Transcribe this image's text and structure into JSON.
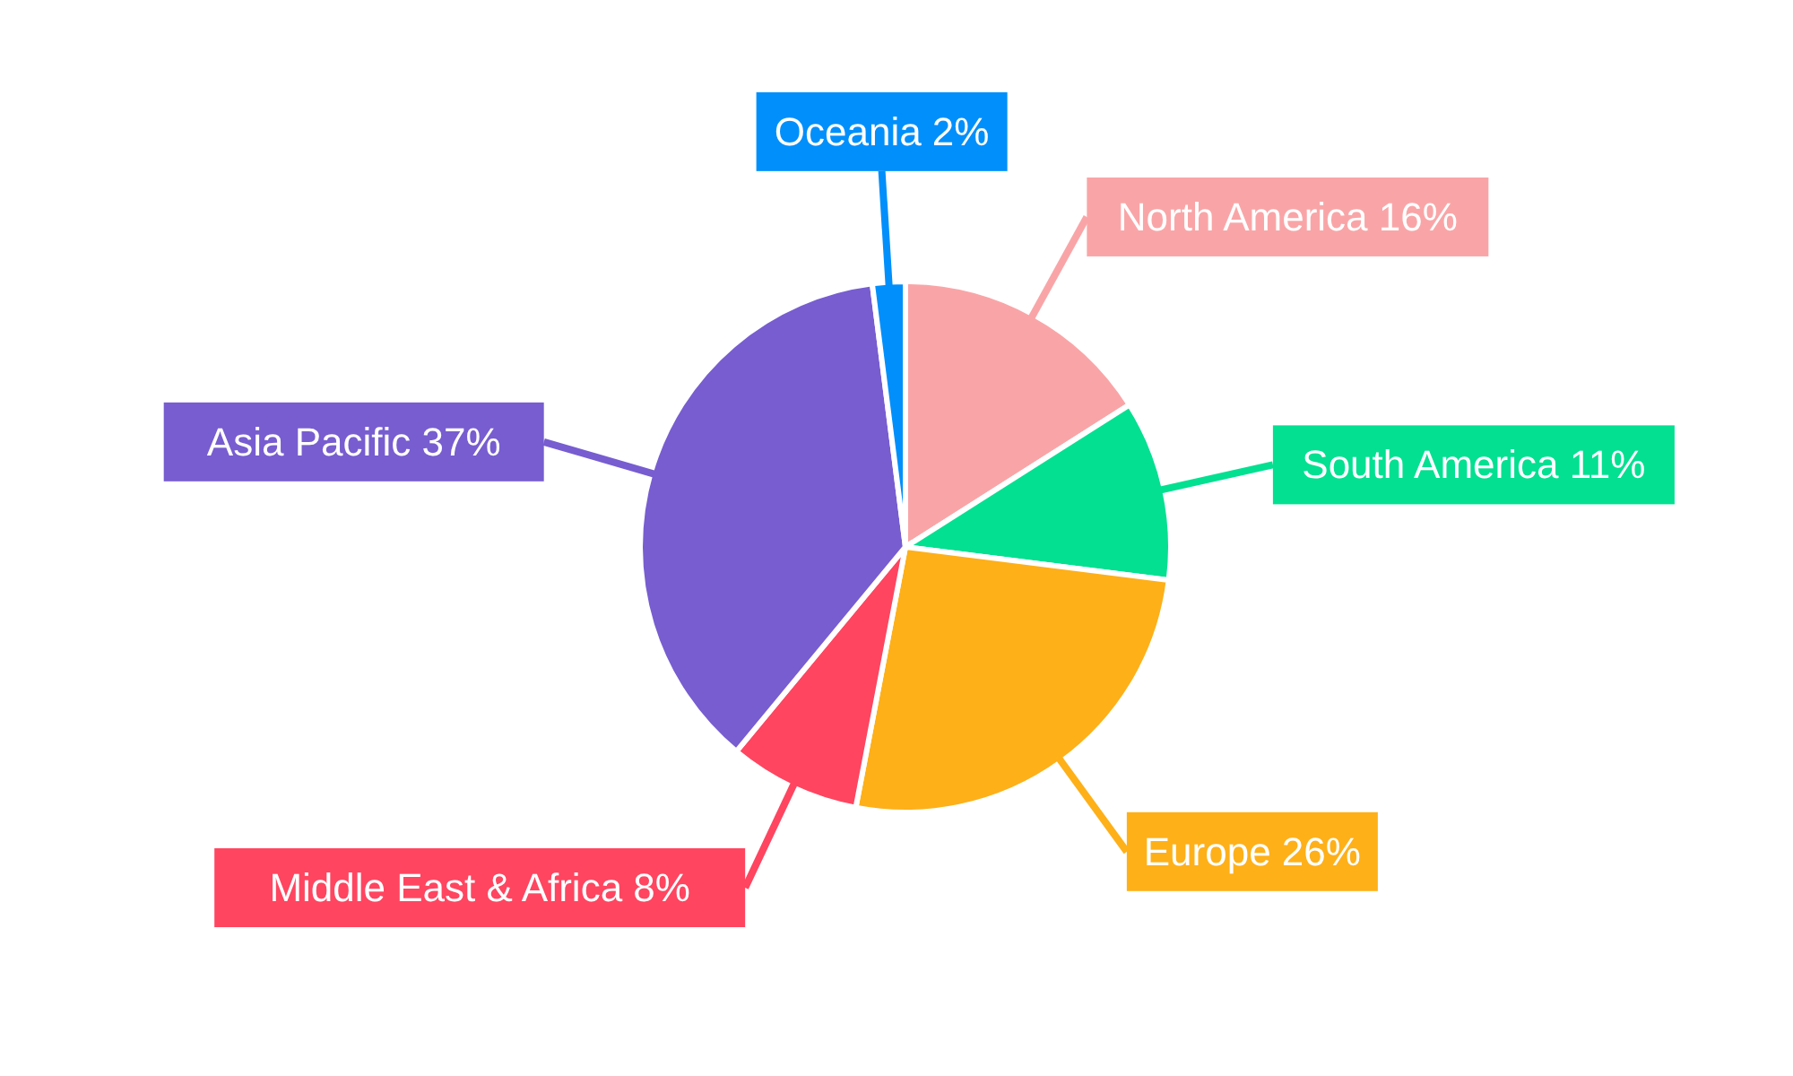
{
  "chart_data": {
    "type": "pie",
    "categories": [
      "North America",
      "South America",
      "Europe",
      "Middle East & Africa",
      "Asia Pacific",
      "Oceania"
    ],
    "values": [
      16,
      11,
      26,
      8,
      37,
      2
    ],
    "value_labels": [
      "16%",
      "11%",
      "26%",
      "8%",
      "37%",
      "2%"
    ],
    "colors": [
      "#f9a5a7",
      "#03e091",
      "#feb019",
      "#ff4560",
      "#775dd0",
      "#008ffb"
    ],
    "legend": false
  }
}
